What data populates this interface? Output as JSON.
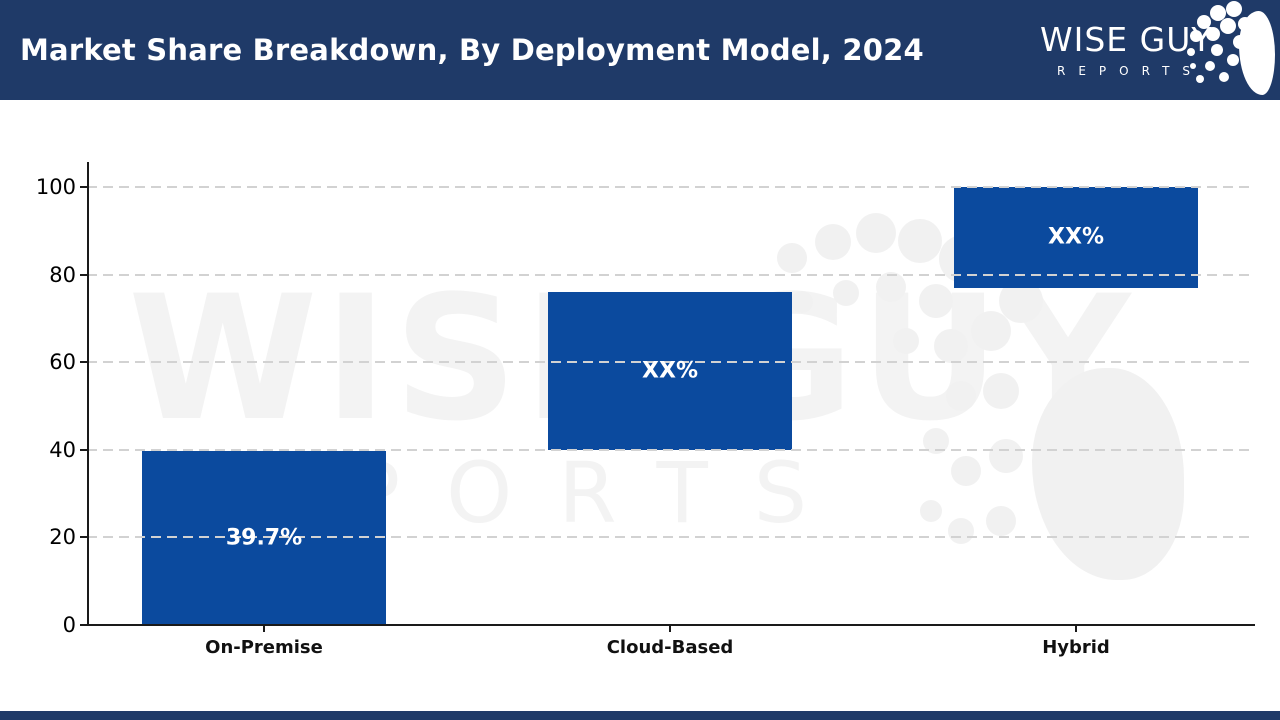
{
  "header": {
    "title": "Market Share Breakdown, By Deployment Model, 2024",
    "logo_line1": "WISE GUY",
    "logo_line2": "REPORTS"
  },
  "watermark": {
    "line1": "WISE GUY",
    "line2": "REPORTS"
  },
  "chart_data": {
    "type": "bar",
    "subtype": "floating-segment-breakdown",
    "title": "Market Share Breakdown, By Deployment Model, 2024",
    "categories": [
      "On-Premise",
      "Cloud-Based",
      "Hybrid"
    ],
    "series": [
      {
        "name": "Market share (%)",
        "segments": [
          {
            "category": "On-Premise",
            "from": 0,
            "to": 39.7,
            "label": "39.7%"
          },
          {
            "category": "Cloud-Based",
            "from": 40,
            "to": 76,
            "label": "XX%"
          },
          {
            "category": "Hybrid",
            "from": 77,
            "to": 100,
            "label": "XX%"
          }
        ]
      }
    ],
    "xlabel": "",
    "ylabel": "",
    "ylim": [
      0,
      105
    ],
    "yticks": [
      0,
      20,
      40,
      60,
      80,
      100
    ],
    "grid": "horizontal-dashed",
    "legend": "none",
    "colors": {
      "bar": "#0b4a9e",
      "header_bg": "#1f3a68",
      "footer_bg": "#1f3a68",
      "grid_line": "#d2d2d2",
      "axis": "#1a1a1a",
      "bar_label": "#ffffff",
      "watermark": "#f1f1f1"
    }
  }
}
